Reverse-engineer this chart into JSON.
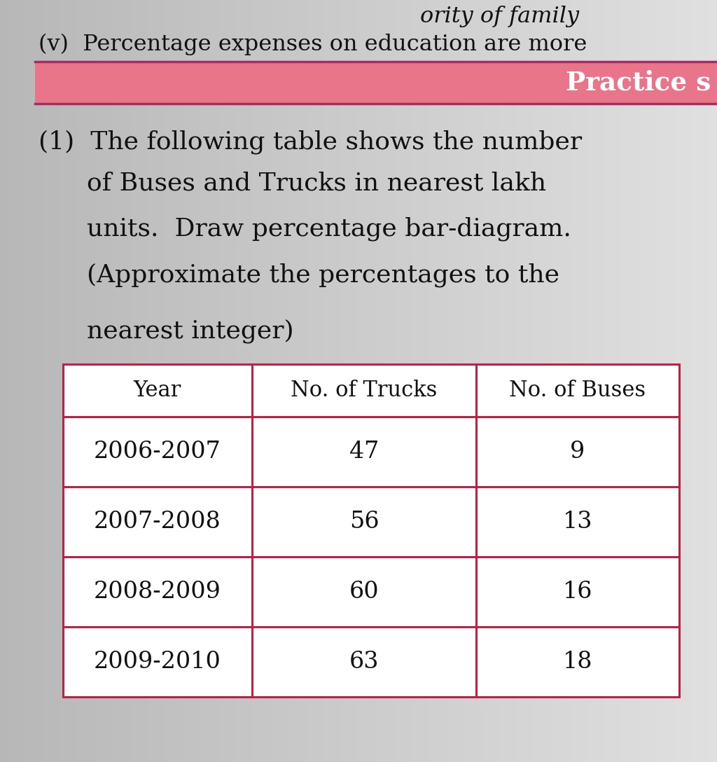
{
  "background_color": "#d8d8d8",
  "page_bg_left": "#b8b8b8",
  "page_bg_right": "#e0e0e0",
  "partial_top_text": "ority of family",
  "header_v_text": "(v)  Percentage expenses on education are more",
  "practice_banner_color": "#e8758a",
  "practice_banner_border": "#a03060",
  "practice_text": "Practice s",
  "practice_text_color": "#ffffff",
  "q_line1": "(1)  The following table shows the number",
  "q_line2": "      of Buses and Trucks in nearest lakh",
  "q_line3": "      units.  Draw percentage bar-diagram.",
  "q_line4": "      (Approximate the percentages to the",
  "q_line5": "      nearest integer)",
  "table_border_color": "#bb2244",
  "col_headers": [
    "Year",
    "No. of Trucks",
    "No. of Buses"
  ],
  "rows": [
    [
      "2006-2007",
      "47",
      "9"
    ],
    [
      "2007-2008",
      "56",
      "13"
    ],
    [
      "2008-2009",
      "60",
      "16"
    ],
    [
      "2009-2010",
      "63",
      "18"
    ]
  ],
  "text_color": "#111111",
  "font_size_top": 23,
  "font_size_question": 26,
  "font_size_practice": 27,
  "font_size_table_header": 22,
  "font_size_table_data": 24
}
